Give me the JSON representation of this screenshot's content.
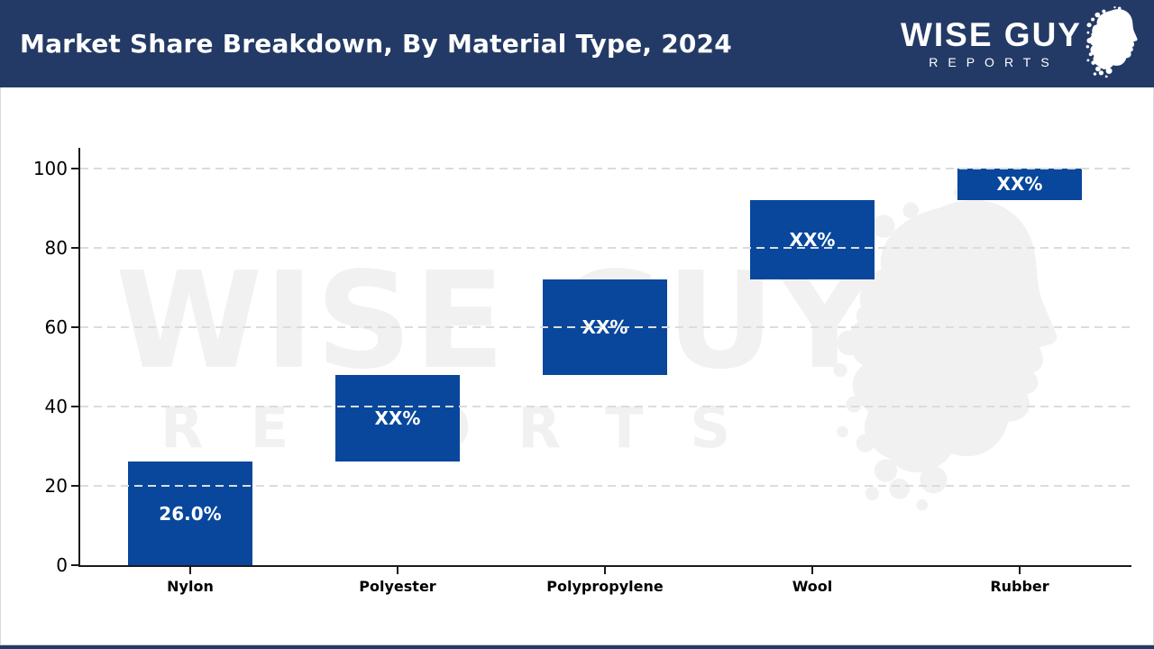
{
  "header": {
    "title": "Market Share Breakdown, By Material Type, 2024",
    "logo": {
      "line1": "WISE GUY",
      "line2": "REPORTS"
    }
  },
  "watermark": {
    "line1": "WISE GUY",
    "line2": "REPORTS"
  },
  "colors": {
    "header_bg": "#233A66",
    "footer_bg": "#233A66",
    "bar": "#08479C",
    "grid": "#dcdcdc",
    "axis": "#1a1a1a",
    "bar_label": "#ffffff",
    "watermark": "#f1f1f2"
  },
  "chart_data": {
    "type": "bar",
    "subtype": "floating-cumulative-segments",
    "title": "Market Share Breakdown, By Material Type, 2024",
    "categories": [
      "Nylon",
      "Polyester",
      "Polypropylene",
      "Wool",
      "Rubber"
    ],
    "bars": [
      {
        "category": "Nylon",
        "start": 0,
        "end": 26,
        "value": 26.0,
        "label": "26.0%"
      },
      {
        "category": "Polyester",
        "start": 26,
        "end": 48,
        "value": 22.0,
        "label": "XX%"
      },
      {
        "category": "Polypropylene",
        "start": 48,
        "end": 72,
        "value": 24.0,
        "label": "XX%"
      },
      {
        "category": "Wool",
        "start": 72,
        "end": 92,
        "value": 20.0,
        "label": "XX%"
      },
      {
        "category": "Rubber",
        "start": 92,
        "end": 100,
        "value": 8.0,
        "label": "XX%"
      }
    ],
    "yticks": [
      0,
      20,
      40,
      60,
      80,
      100
    ],
    "ylim": [
      0,
      105
    ],
    "xlabel": "",
    "ylabel": "",
    "grid": "horizontal-dashed",
    "legend": "none",
    "bar_color": "#08479C"
  }
}
